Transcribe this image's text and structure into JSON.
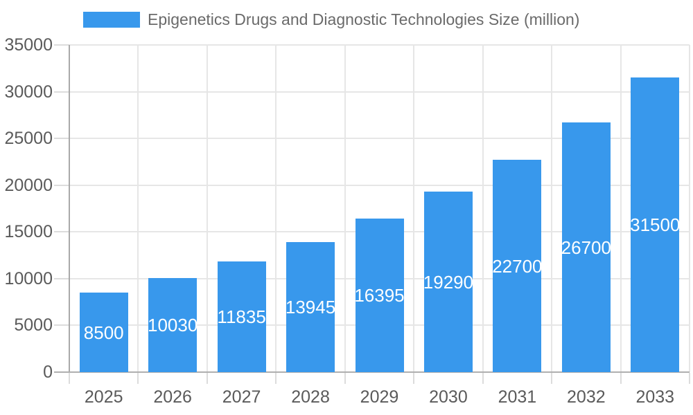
{
  "legend": {
    "label": "Epigenetics Drugs and Diagnostic Technologies Size (million)"
  },
  "chart_data": {
    "type": "bar",
    "title": "Epigenetics Drugs and Diagnostic Technologies Size (million)",
    "categories": [
      "2025",
      "2026",
      "2027",
      "2028",
      "2029",
      "2030",
      "2031",
      "2032",
      "2033"
    ],
    "series": [
      {
        "name": "Epigenetics Drugs and Diagnostic Technologies Size (million)",
        "values": [
          8500,
          10030,
          11835,
          13945,
          16395,
          19290,
          22700,
          26700,
          31500
        ]
      }
    ],
    "bar_value_labels": [
      "8500",
      "10030",
      "11835",
      "13945",
      "16395",
      "19290",
      "22700",
      "26700",
      "31500"
    ],
    "xlabel": "",
    "ylabel": "",
    "ylim": [
      0,
      35000
    ],
    "ytick_step": 5000,
    "y_tick_labels": [
      "0",
      "5000",
      "10000",
      "15000",
      "20000",
      "25000",
      "30000",
      "35000"
    ],
    "legend_position": "top",
    "grid": true,
    "colors": {
      "bar": "#3898EC",
      "bar_label": "#FFFFFF",
      "grid_line": "#E6E6E6",
      "tick_line": "#DCDCDC",
      "y_axis_line": "#A9A9A9",
      "x_axis_line": "#AFAFAF",
      "tick_text": "#5A5A5A",
      "legend_text": "#6A6A6A",
      "background": "#FFFFFF"
    }
  }
}
